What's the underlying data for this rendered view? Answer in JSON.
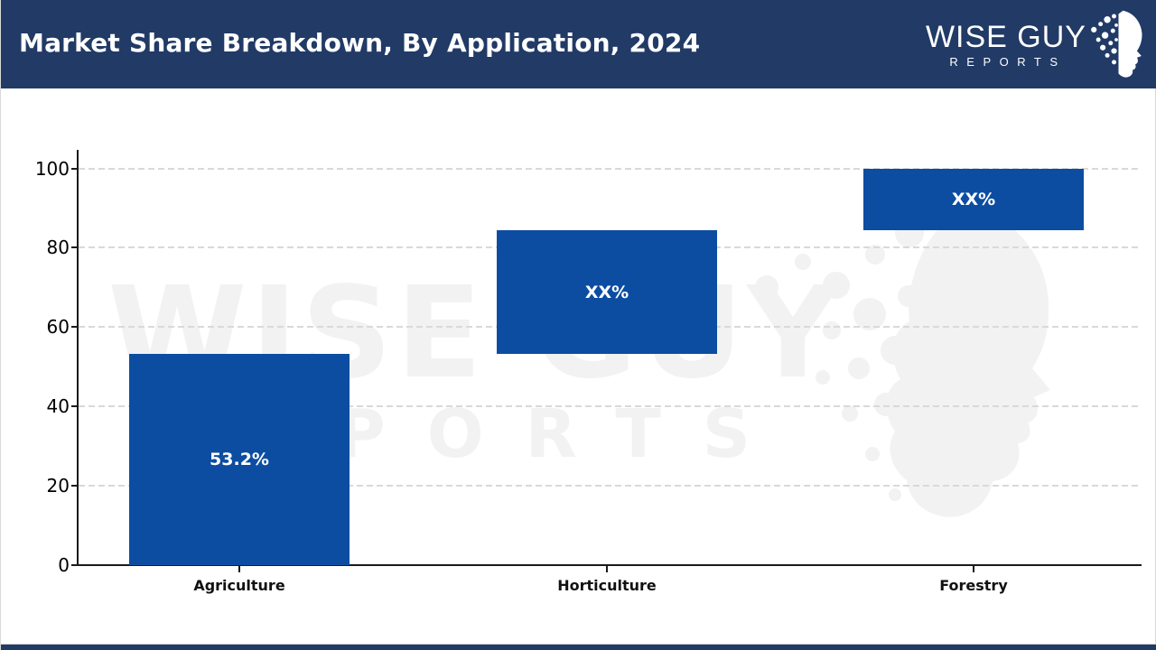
{
  "header": {
    "title": "Market Share Breakdown, By Application, 2024",
    "bg_color": "#213a66"
  },
  "logo": {
    "line1": "WISE GUY",
    "line2": "REPORTS",
    "icon": "dotted-head-profile"
  },
  "watermark": {
    "line1": "WISE GUY",
    "line2": "REPORTS",
    "icon": "dotted-head-profile"
  },
  "footer": {
    "bg_color": "#213a66"
  },
  "chart_data": {
    "type": "bar",
    "subtype": "floating-waterfall-stacked",
    "title": "Market Share Breakdown, By Application, 2024",
    "categories": [
      "Agriculture",
      "Horticulture",
      "Forestry"
    ],
    "segments": [
      {
        "category": "Agriculture",
        "start": 0,
        "end": 53.2,
        "value": 53.2,
        "label": "53.2%"
      },
      {
        "category": "Horticulture",
        "start": 53.2,
        "end": 84.5,
        "value": 31.3,
        "label": "XX%"
      },
      {
        "category": "Forestry",
        "start": 84.5,
        "end": 100,
        "value": 15.5,
        "label": "XX%"
      }
    ],
    "xlabel": "",
    "ylabel": "",
    "ylim": [
      0,
      104.5
    ],
    "yticks": [
      0,
      20,
      40,
      60,
      80,
      100
    ],
    "grid": "horizontal-dashed",
    "legend": "none",
    "bar_color": "#0c4da2",
    "label_color": "#ffffff",
    "axis_color": "#1a1a1a",
    "grid_color": "#d9d9d9"
  }
}
